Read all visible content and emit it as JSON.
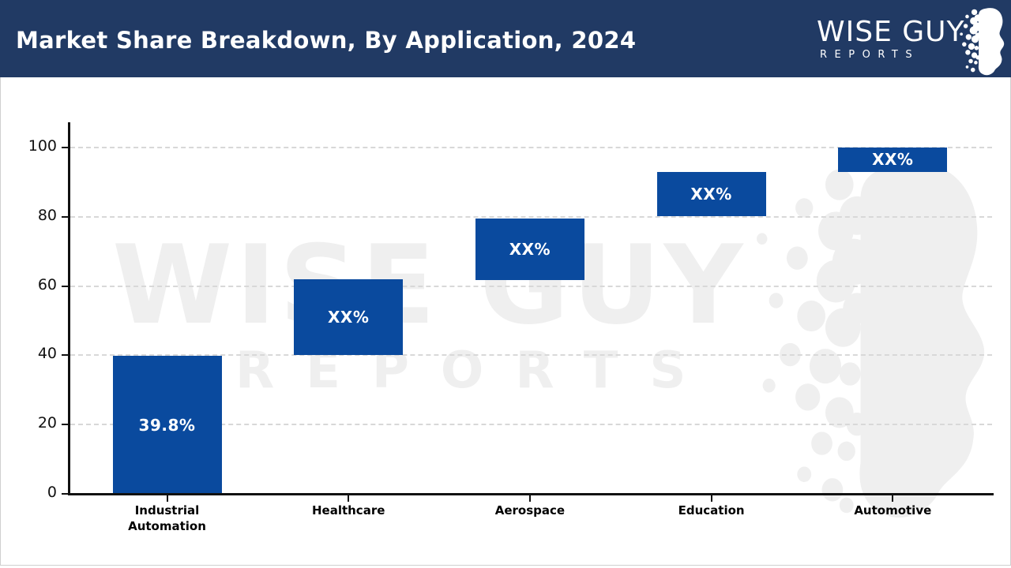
{
  "header": {
    "title": "Market Share Breakdown, By Application, 2024",
    "logo": {
      "line1": "WISE GUY",
      "line2": "REPORTS"
    }
  },
  "watermark": {
    "line1": "WISE GUY",
    "line2": "REPORTS"
  },
  "colors": {
    "header_bg": "#213A64",
    "bar": "#0A4A9E",
    "grid": "#D8D8D8",
    "axis": "#111111",
    "watermark": "#EFEFEF",
    "label_on_bar": "#FFFFFF",
    "frame": "#CFCFCF"
  },
  "chart_data": {
    "type": "bar",
    "subtype": "waterfall",
    "title": "Market Share Breakdown, By Application, 2024",
    "categories": [
      "Industrial Automation",
      "Healthcare",
      "Aerospace",
      "Education",
      "Automotive"
    ],
    "segments": [
      {
        "category": "Industrial Automation",
        "start": 0,
        "end": 39.8,
        "label": "39.8%"
      },
      {
        "category": "Healthcare",
        "start": 40.2,
        "end": 61.9,
        "label": "XX%"
      },
      {
        "category": "Aerospace",
        "start": 61.8,
        "end": 79.5,
        "label": "XX%"
      },
      {
        "category": "Education",
        "start": 80.2,
        "end": 92.9,
        "label": "XX%"
      },
      {
        "category": "Automotive",
        "start": 92.9,
        "end": 100.1,
        "label": "XX%"
      }
    ],
    "yticks": [
      0,
      20,
      40,
      60,
      80,
      100
    ],
    "ylim": [
      0,
      105
    ],
    "xlabel": "",
    "ylabel": "",
    "grid": "horizontal-dashed",
    "legend": "none"
  }
}
